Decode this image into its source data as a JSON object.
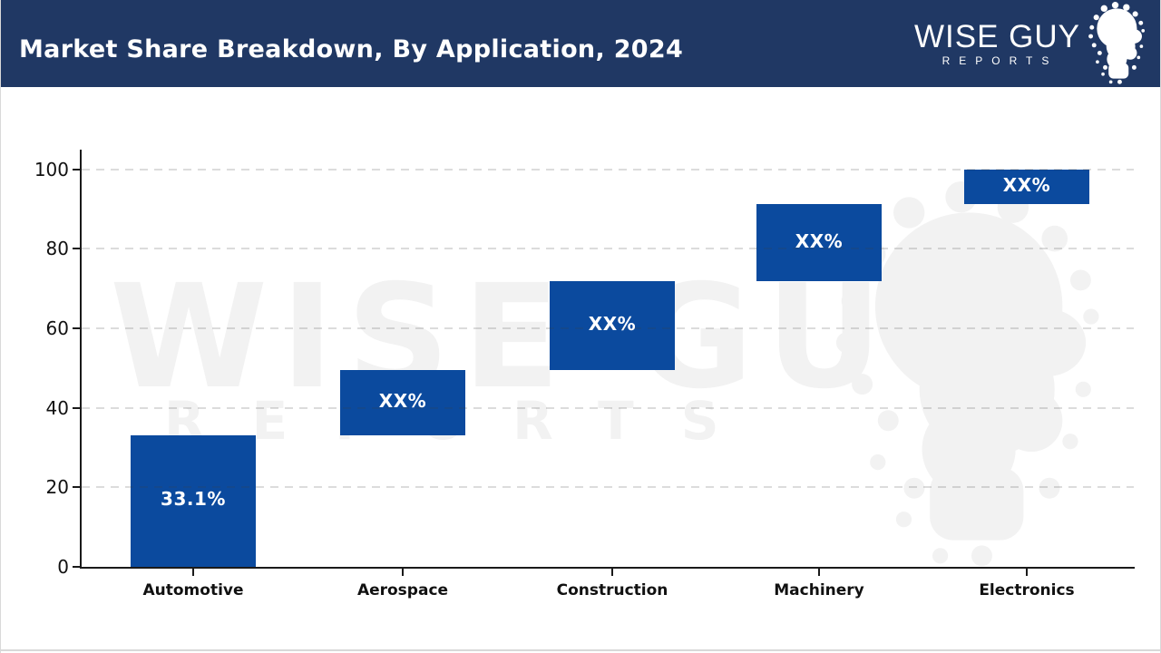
{
  "header": {
    "logo": {
      "line1": "WISE GUY",
      "line2": "REPORTS"
    },
    "bg_color": "#203864"
  },
  "watermark": {
    "line1": "WISE GUY",
    "line2": "REPORTS",
    "color": "#f2f2f2"
  },
  "chart_data": {
    "type": "bar",
    "subtype": "waterfall",
    "title": "Market Share Breakdown, By Application, 2024",
    "categories": [
      "Automotive",
      "Aerospace",
      "Construction",
      "Machinery",
      "Electronics"
    ],
    "segments": [
      {
        "category": "Automotive",
        "start": 0,
        "end": 33.1,
        "label": "33.1%"
      },
      {
        "category": "Aerospace",
        "start": 33.1,
        "end": 49.6,
        "label": "XX%"
      },
      {
        "category": "Construction",
        "start": 49.6,
        "end": 71.9,
        "label": "XX%"
      },
      {
        "category": "Machinery",
        "start": 71.9,
        "end": 91.2,
        "label": "XX%"
      },
      {
        "category": "Electronics",
        "start": 91.2,
        "end": 100,
        "label": "XX%"
      }
    ],
    "yticks": [
      0,
      20,
      40,
      60,
      80,
      100
    ],
    "ylim": [
      0,
      105
    ],
    "xlabel": "",
    "ylabel": "",
    "grid": true,
    "gridline_style": "dashed",
    "legend": "none",
    "bar_color": "#0b4a9e",
    "bar_label_color": "#ffffff"
  }
}
